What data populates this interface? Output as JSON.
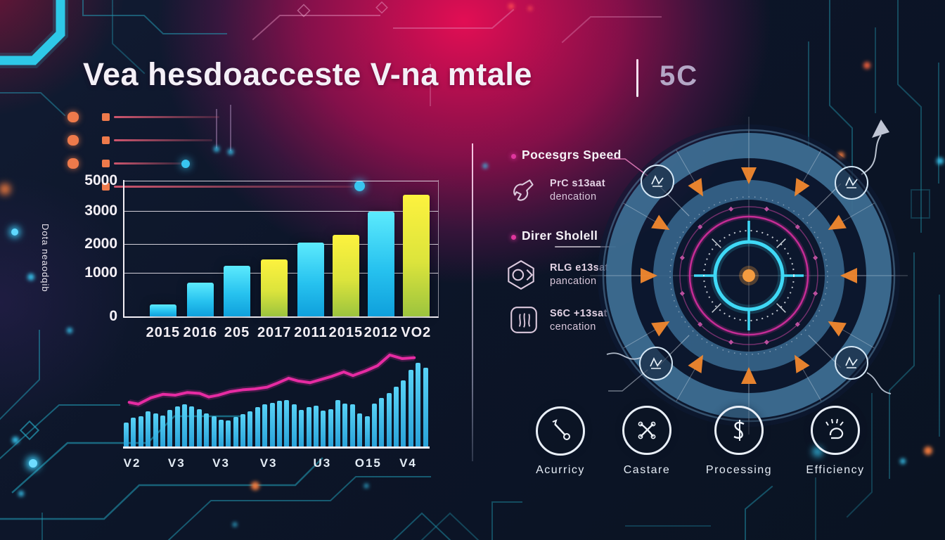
{
  "header": {
    "title": "Vea hesdoacceste V-na mtale",
    "badge": "5C"
  },
  "colors": {
    "accent_cyan": "#38c5ef",
    "accent_yellow": "#dce43c",
    "accent_magenta": "#e62ba2",
    "accent_orange": "#f2882e",
    "ring_blue": "#3f7095",
    "glow_red": "#ed0d56"
  },
  "chart_data": [
    {
      "type": "bar",
      "title": "",
      "ylabel": "Dota neaodqib",
      "categories": [
        "2015",
        "2016",
        "205",
        "2017",
        "2011",
        "2015",
        "2012",
        "VO2"
      ],
      "values": [
        300,
        800,
        1250,
        1450,
        2000,
        2300,
        3000,
        3600
      ],
      "height_pct": [
        9,
        24.5,
        37,
        42,
        54,
        60,
        77,
        89
      ],
      "bar_colors": [
        "cyan",
        "cyan",
        "cyan",
        "yellow",
        "cyan",
        "yellow",
        "cyan",
        "yellow"
      ],
      "bar_x_pct": [
        12.3,
        24.2,
        35.9,
        47.8,
        59.4,
        70.6,
        81.8,
        93.0
      ],
      "y_ticks": [
        {
          "label": "5000",
          "pos_pct": 0.5
        },
        {
          "label": "3000",
          "pos_pct": 22.9
        },
        {
          "label": "2000",
          "pos_pct": 46.8
        },
        {
          "label": "1000",
          "pos_pct": 68.1
        },
        {
          "label": "0",
          "pos_pct": 100
        }
      ],
      "ylim": [
        0,
        5000
      ],
      "grid": true,
      "legend": "none"
    },
    {
      "type": "bar+line",
      "title": "",
      "categories": [
        "V2",
        "V3",
        "V3",
        "V3",
        "U3",
        "O15",
        "V4"
      ],
      "cat_x_pct": [
        3,
        17.5,
        32,
        47.5,
        65,
        80,
        93
      ],
      "bar_height_pct": [
        27,
        32,
        34,
        39,
        37,
        35,
        41,
        45,
        47,
        45,
        42,
        37,
        34,
        30,
        29,
        33,
        36,
        39,
        44,
        47,
        49,
        51,
        52,
        47,
        41,
        44,
        46,
        40,
        42,
        52,
        48,
        47,
        37,
        34,
        48,
        54,
        60,
        67,
        74,
        86,
        94,
        88
      ],
      "line_points_pct": [
        [
          2,
          40
        ],
        [
          5,
          38
        ],
        [
          9,
          45
        ],
        [
          13,
          49
        ],
        [
          17,
          48
        ],
        [
          21,
          51
        ],
        [
          25,
          50
        ],
        [
          28,
          46
        ],
        [
          31,
          48
        ],
        [
          35,
          52
        ],
        [
          39,
          54
        ],
        [
          43,
          55
        ],
        [
          47,
          57
        ],
        [
          50,
          61
        ],
        [
          54,
          67
        ],
        [
          57,
          64
        ],
        [
          61,
          62
        ],
        [
          65,
          66
        ],
        [
          68,
          69
        ],
        [
          72,
          74
        ],
        [
          75,
          70
        ],
        [
          79,
          75
        ],
        [
          83,
          81
        ],
        [
          87,
          93
        ],
        [
          91,
          89
        ],
        [
          95,
          90
        ]
      ],
      "grid": false,
      "legend": "none"
    }
  ],
  "right_panel": {
    "sections": [
      {
        "label": "Pocesgrs Speed",
        "items": [
          {
            "icon": "wrench-icon",
            "line1": "PrC s13aat",
            "line2": "dencation"
          }
        ]
      },
      {
        "label": "Direr Sholell",
        "items": [
          {
            "icon": "hexagon-icon",
            "line1": "RLG e13sat",
            "line2": "pancation"
          },
          {
            "icon": "chip-icon",
            "line1": "S6C +13sat",
            "line2": "cencation"
          }
        ]
      }
    ]
  },
  "bottom_icons": [
    {
      "icon": "pin-icon",
      "label": "Acurricy"
    },
    {
      "icon": "crossed-tools-icon",
      "label": "Castare"
    },
    {
      "icon": "dollar-icon",
      "label": "Processing"
    },
    {
      "icon": "hand-rays-icon",
      "label": "Efficiency"
    }
  ]
}
